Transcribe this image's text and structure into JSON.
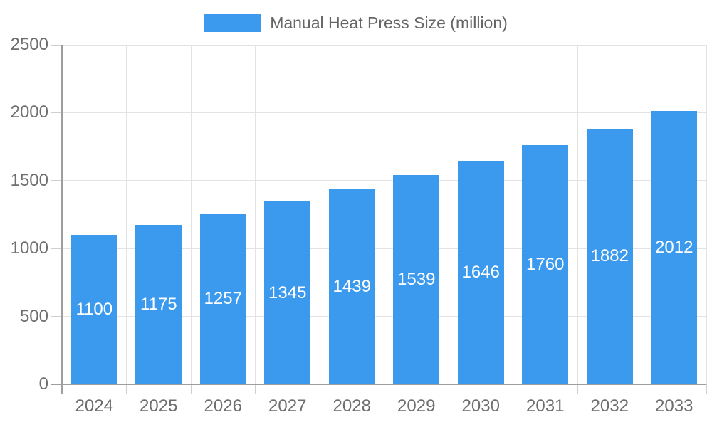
{
  "legend": {
    "label": "Manual Heat Press Size (million)"
  },
  "chart_data": {
    "type": "bar",
    "title": "Manual Heat Press Size (million)",
    "series_name": "Manual Heat Press Size (million)",
    "categories": [
      "2024",
      "2025",
      "2026",
      "2027",
      "2028",
      "2029",
      "2030",
      "2031",
      "2032",
      "2033"
    ],
    "values": [
      1100,
      1175,
      1257,
      1345,
      1439,
      1539,
      1646,
      1760,
      1882,
      2012
    ],
    "bar_labels": [
      "1100",
      "1175",
      "1257",
      "1345",
      "1439",
      "1539",
      "1646",
      "1760",
      "1882",
      "2012"
    ],
    "xlabel": "",
    "ylabel": "",
    "ylim": [
      0,
      2500
    ],
    "yticks": [
      0,
      500,
      1000,
      1500,
      2000,
      2500
    ],
    "ytick_labels": [
      "0",
      "500",
      "1000",
      "1500",
      "2000",
      "2500"
    ],
    "grid": true,
    "legend_position": "top-center",
    "bar_labels_visible": true,
    "colors": {
      "bar": "#3b99ee",
      "bar_label": "#ffffff",
      "gridline": "#e3e3e3",
      "tick_mark": "#cfcfcf",
      "axis_line": "#9e9e9e",
      "tick_text": "#6e6e6e",
      "legend_text": "#666666",
      "background": "#ffffff"
    }
  }
}
